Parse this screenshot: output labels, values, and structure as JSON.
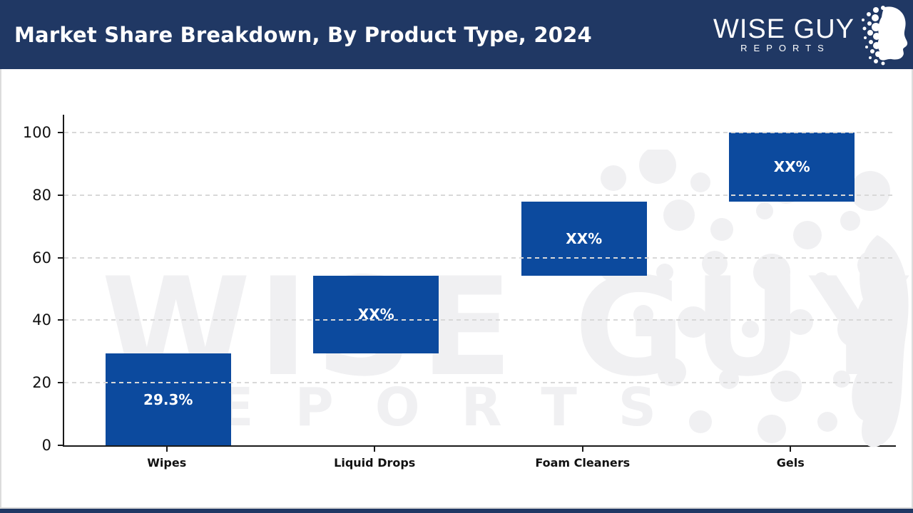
{
  "header": {
    "title": "Market Share Breakdown, By Product Type, 2024",
    "logo": {
      "name": "WISE GUY",
      "subname": "REPORTS"
    }
  },
  "watermark": {
    "line1": "WISE GUY",
    "line2": "REPORTS"
  },
  "chart_data": {
    "type": "bar",
    "subtype": "waterfall",
    "title": "Market Share Breakdown, By Product Type, 2024",
    "categories": [
      "Wipes",
      "Liquid Drops",
      "Foam Cleaners",
      "Gels"
    ],
    "segments": [
      {
        "category": "Wipes",
        "start": 0,
        "end": 29.3,
        "value": 29.3,
        "label": "29.3%"
      },
      {
        "category": "Liquid Drops",
        "start": 29.3,
        "end": 54.3,
        "value": 25.0,
        "label": "XX%"
      },
      {
        "category": "Foam Cleaners",
        "start": 54.3,
        "end": 78.0,
        "value": 23.7,
        "label": "XX%"
      },
      {
        "category": "Gels",
        "start": 78.0,
        "end": 100.0,
        "value": 22.0,
        "label": "XX%"
      }
    ],
    "yticks": [
      0,
      20,
      40,
      60,
      80,
      100
    ],
    "ylim": [
      0,
      105.7
    ],
    "xlabel": "",
    "ylabel": "",
    "grid": true,
    "legend": false,
    "bar_color": "#0c4a9e",
    "bar_label_color": "#ffffff"
  },
  "colors": {
    "header_bg": "#203864",
    "footer_bg": "#203864",
    "grid": "#d8d8d8",
    "axis": "#1a1a1a",
    "watermark": "#f0f0f2"
  }
}
